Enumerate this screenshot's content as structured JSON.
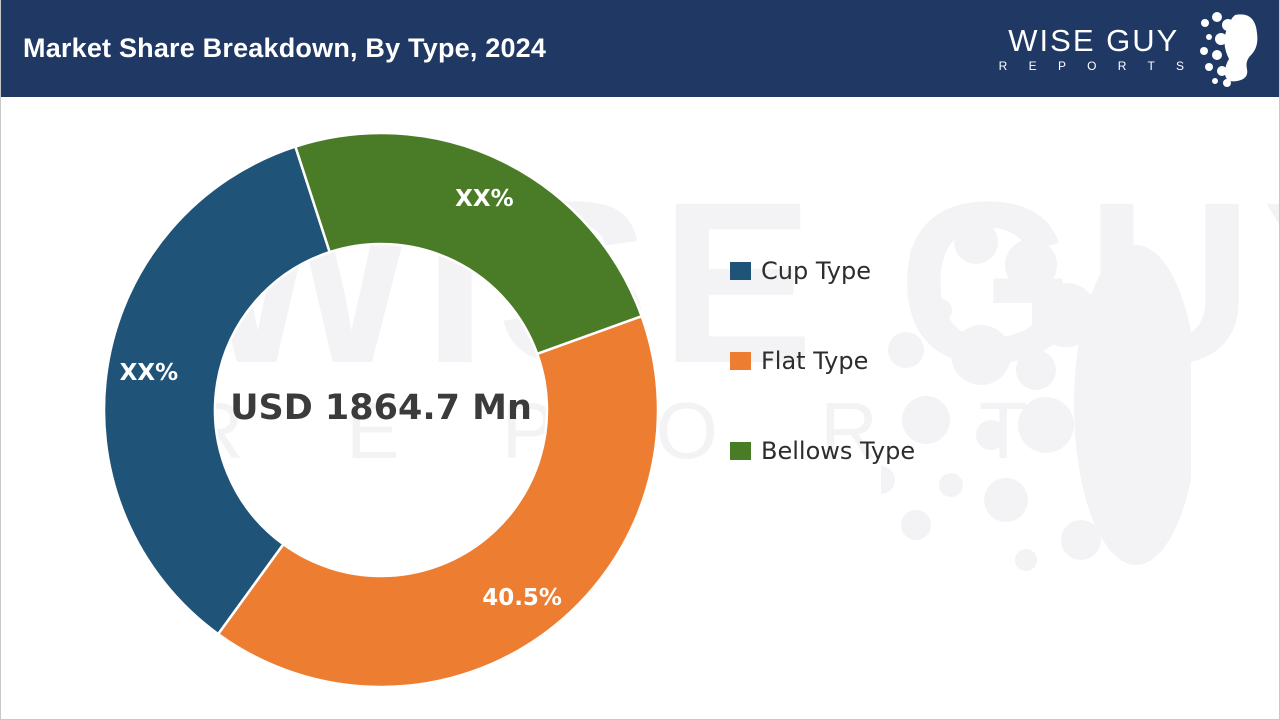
{
  "header": {
    "title": "Market Share Breakdown, By Type, 2024",
    "background_color": "#1f3864",
    "logo": {
      "line1": "WISE GUY",
      "line2": "R E P O R T S",
      "icon": "dotted-face-profile"
    }
  },
  "chart_data": {
    "type": "donut",
    "title": "Market Share Breakdown, By Type, 2024",
    "center_label": "USD 1864.7 Mn",
    "legend_position": "right",
    "start_angle_deg": 108,
    "direction": "counterclockwise",
    "segments": [
      {
        "label": "Cup Type",
        "display_value": "XX%",
        "percent": 35.0,
        "percent_estimated": true,
        "color": "#1f5378"
      },
      {
        "label": "Flat Type",
        "display_value": "40.5%",
        "percent": 40.5,
        "percent_estimated": false,
        "color": "#ed7d31"
      },
      {
        "label": "Bellows Type",
        "display_value": "XX%",
        "percent": 24.5,
        "percent_estimated": true,
        "color": "#4a7c28"
      }
    ]
  },
  "watermark": {
    "big_text": "WISE GUY",
    "reports_text": "R E P O R T S",
    "color": "#f3f3f5"
  }
}
